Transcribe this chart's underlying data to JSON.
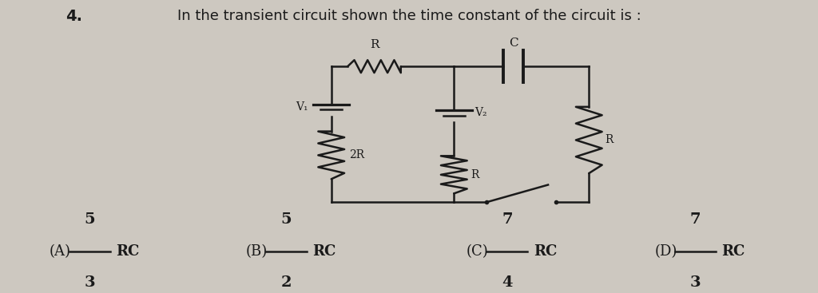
{
  "title": "In the transient circuit shown the time constant of the circuit is :",
  "question_number": "4.",
  "background_color": "#cdc8c0",
  "text_color": "#1a1a1a",
  "options": [
    {
      "label": "(A)",
      "numerator": "5",
      "denominator": "3",
      "suffix": "RC"
    },
    {
      "label": "(B)",
      "numerator": "5",
      "denominator": "2",
      "suffix": "RC"
    },
    {
      "label": "(C)",
      "numerator": "7",
      "denominator": "4",
      "suffix": "RC"
    },
    {
      "label": "(D)",
      "numerator": "7",
      "denominator": "3",
      "suffix": "RC"
    }
  ],
  "circuit": {
    "TLx": 0.405,
    "TLy": 0.77,
    "TRx": 0.72,
    "TRy": 0.77,
    "BLx": 0.405,
    "BLy": 0.3,
    "BRx": 0.72,
    "BRy": 0.3,
    "MIDx": 0.555
  },
  "lw": 1.8
}
